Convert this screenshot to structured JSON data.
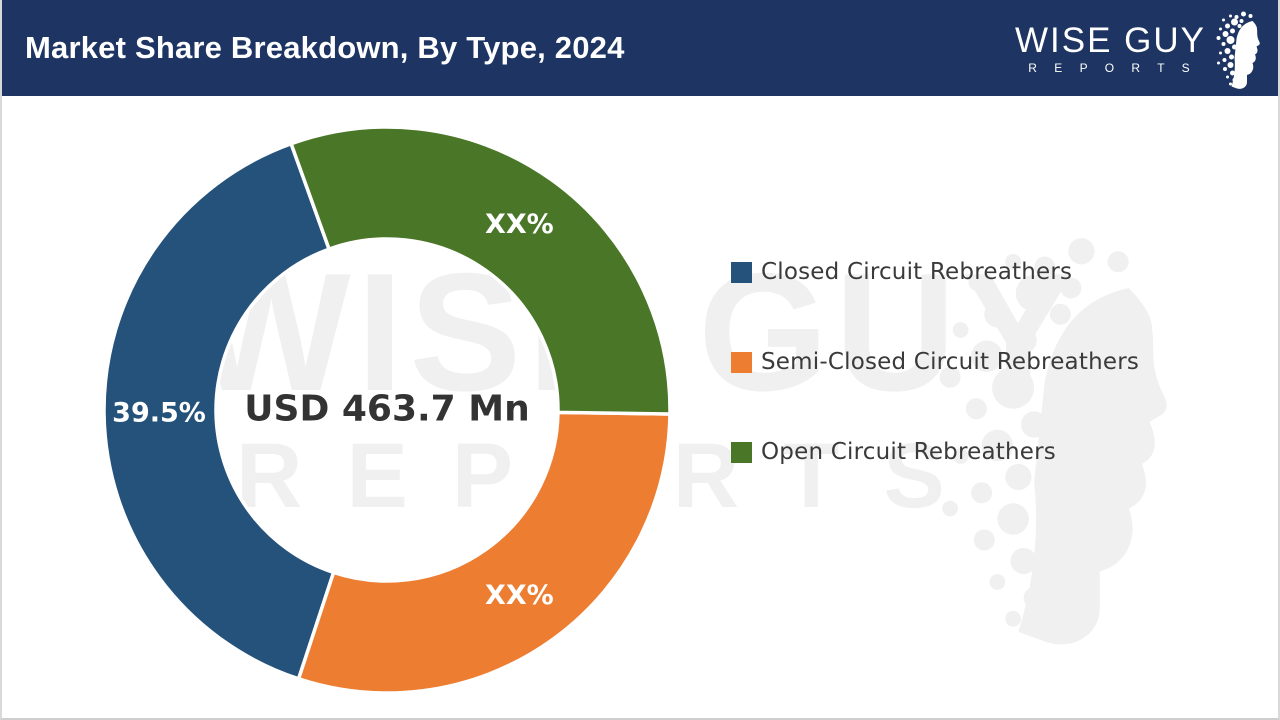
{
  "header": {
    "title": "Market Share Breakdown, By Type, 2024",
    "logo": {
      "line1": "WISE GUY",
      "line2": "R E P O R T S"
    }
  },
  "watermark": {
    "line1": "WISE GUY",
    "line2": "REPORTS"
  },
  "chart_data": {
    "type": "pie",
    "subtype": "donut",
    "title": "Market Share Breakdown, By Type, 2024",
    "center_label": "USD 463.7 Mn",
    "categories": [
      "Closed Circuit Rebreathers",
      "Semi-Closed Circuit Rebreathers",
      "Open Circuit Rebreathers"
    ],
    "displayed_labels": [
      "39.5%",
      "XX%",
      "XX%"
    ],
    "values_pct_estimated": [
      39.5,
      29.9,
      30.6
    ],
    "colors": [
      "#24527B",
      "#ED7D31",
      "#4A7628"
    ],
    "legend_position": "right",
    "segments": [
      {
        "name": "Closed Circuit Rebreathers",
        "color": "#24527B",
        "start": 198.2,
        "end": 340.2,
        "label": "39.5%"
      },
      {
        "name": "Semi-Closed Circuit Rebreathers",
        "color": "#ED7D31",
        "start": 90.8,
        "end": 198.2,
        "label": "XX%"
      },
      {
        "name": "Open Circuit Rebreathers",
        "color": "#4A7628",
        "start": -19.8,
        "end": 90.8,
        "label": "XX%"
      }
    ]
  },
  "legend": {
    "items": [
      {
        "label": "Closed Circuit Rebreathers",
        "color": "#24527B"
      },
      {
        "label": "Semi-Closed Circuit Rebreathers",
        "color": "#ED7D31"
      },
      {
        "label": "Open Circuit Rebreathers",
        "color": "#4A7628"
      }
    ]
  },
  "theme": {
    "header_bg": "#1E3463",
    "text_on_header": "#FFFFFF",
    "center_text_color": "#333333",
    "legend_text_color": "#3A3A3A",
    "watermark_color": "#F0F0F0"
  }
}
